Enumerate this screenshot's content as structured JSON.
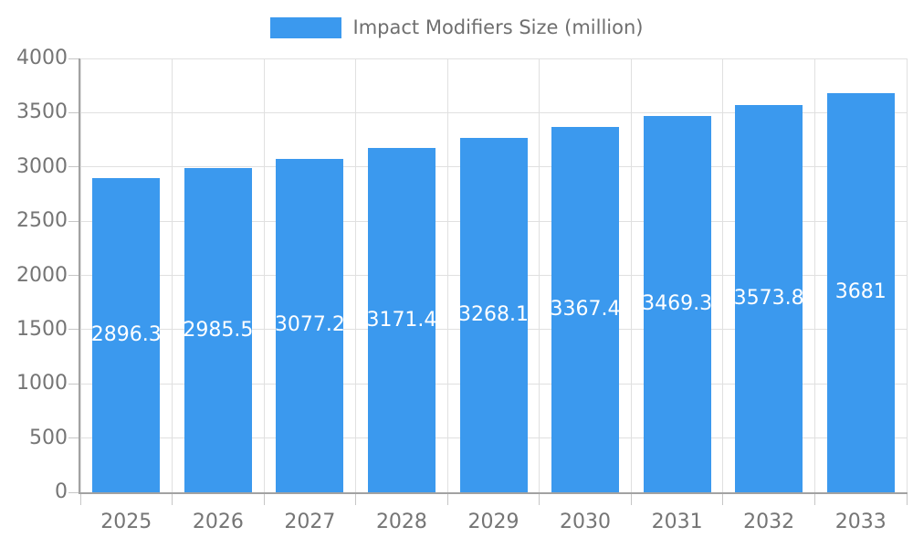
{
  "legend": {
    "label": "Impact Modifiers Size (million)"
  },
  "colors": {
    "bar": "#3B99EE",
    "grid": "#e0e0e0",
    "axis": "#a2a2a2",
    "tick": "#c6c6c6",
    "tick_text": "#757575",
    "legend_text": "#6f6f6f",
    "bar_label_text": "#ffffff",
    "background": "#ffffff"
  },
  "chart_data": {
    "type": "bar",
    "title": "Impact Modifiers Size (million)",
    "categories": [
      "2025",
      "2026",
      "2027",
      "2028",
      "2029",
      "2030",
      "2031",
      "2032",
      "2033"
    ],
    "series": [
      {
        "name": "Impact Modifiers Size (million)",
        "values": [
          2896.3,
          2985.5,
          3077.2,
          3171.4,
          3268.1,
          3367.4,
          3469.3,
          3573.8,
          3681
        ]
      }
    ],
    "value_labels": [
      "2896.3",
      "2985.5",
      "3077.2",
      "3171.4",
      "3268.1",
      "3367.4",
      "3469.3",
      "3573.8",
      "3681"
    ],
    "xlabel": "",
    "ylabel": "",
    "ylim": [
      0,
      4000
    ],
    "ytick_step": 500,
    "ytick_labels": [
      "0",
      "500",
      "1000",
      "1500",
      "2000",
      "2500",
      "3000",
      "3500",
      "4000"
    ],
    "grid": true,
    "legend_position": "top",
    "value_label_position": "center-of-bar"
  }
}
